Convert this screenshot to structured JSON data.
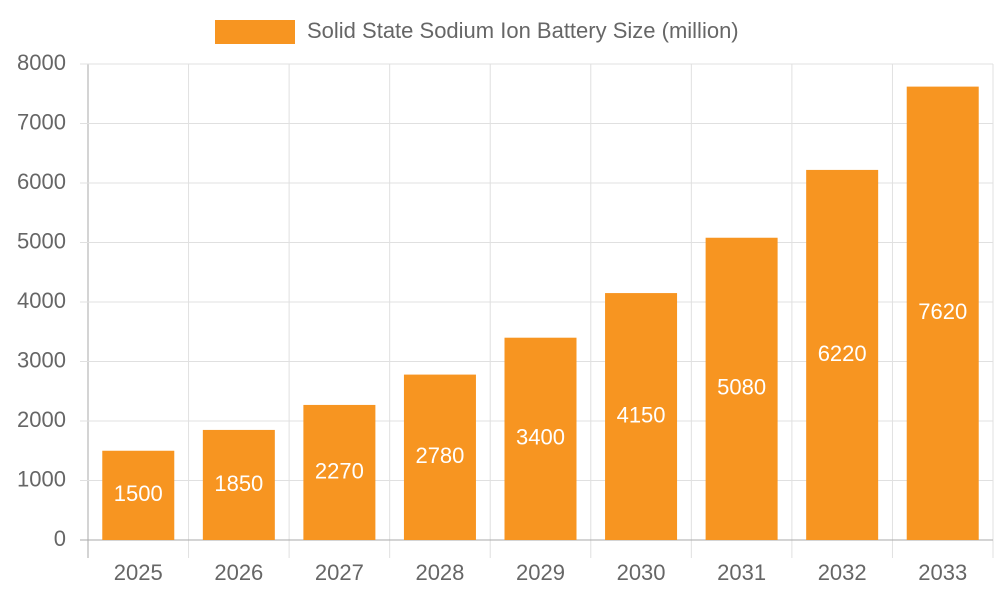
{
  "chart_data": {
    "type": "bar",
    "categories": [
      "2025",
      "2026",
      "2027",
      "2028",
      "2029",
      "2030",
      "2031",
      "2032",
      "2033"
    ],
    "series": [
      {
        "name": "Solid State Sodium Ion Battery Size (million)",
        "color": "#f79521",
        "values": [
          1500,
          1850,
          2270,
          2780,
          3400,
          4150,
          5080,
          6220,
          7620
        ]
      }
    ],
    "ylim": [
      0,
      8000
    ],
    "yticks": [
      0,
      1000,
      2000,
      3000,
      4000,
      5000,
      6000,
      7000,
      8000
    ],
    "grid": true,
    "legend": "top"
  }
}
